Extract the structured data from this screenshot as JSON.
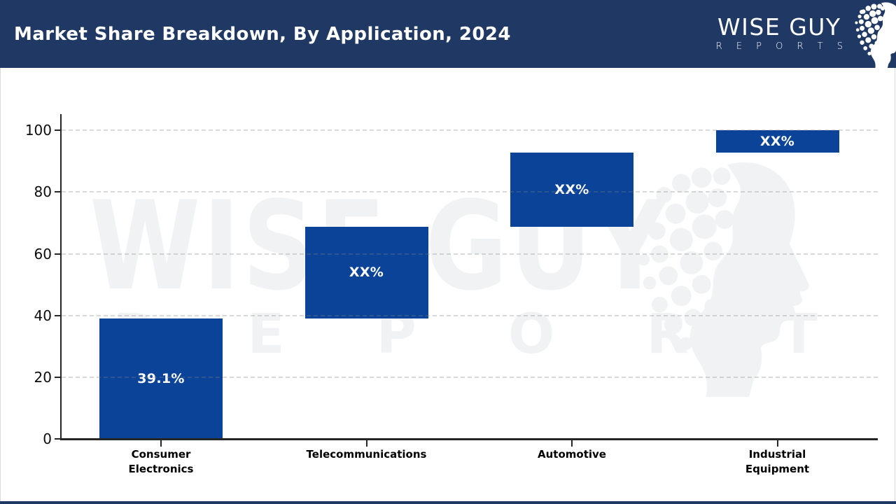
{
  "header": {
    "title": "Market Share Breakdown, By Application, 2024",
    "bg_color": "#1f3864",
    "logo": {
      "brand_line1": "WISE GUY",
      "brand_line2": "R E P O R T S"
    }
  },
  "watermark": {
    "brand_line1": "WISE GUY",
    "brand_line2": "R E P O R T S"
  },
  "chart_data": {
    "type": "bar",
    "subtype": "waterfall",
    "title": "Market Share Breakdown, By Application, 2024",
    "categories": [
      [
        "Consumer",
        "Electronics"
      ],
      [
        "Telecommunications"
      ],
      [
        "Automotive"
      ],
      [
        "Industrial",
        "Equipment"
      ]
    ],
    "bars": [
      {
        "start": 0,
        "end": 39.1,
        "value": 39.1,
        "label": "39.1%"
      },
      {
        "start": 39.1,
        "end": 68.7,
        "value": 29.6,
        "label": "XX%"
      },
      {
        "start": 68.7,
        "end": 92.8,
        "value": 24.1,
        "label": "XX%"
      },
      {
        "start": 92.8,
        "end": 100,
        "value": 7.2,
        "label": "XX%"
      }
    ],
    "yticks": [
      0,
      20,
      40,
      60,
      80,
      100
    ],
    "ylim": [
      0,
      105
    ],
    "xlabel": "",
    "ylabel": "",
    "grid": "horizontal-dashed",
    "legend_position": "none",
    "colors": {
      "bar": "#0a4397",
      "value_label": "#ffffff",
      "axis": "#262626",
      "header_bg": "#1f3864"
    }
  },
  "footer": {
    "bg_color": "#1f3864"
  }
}
